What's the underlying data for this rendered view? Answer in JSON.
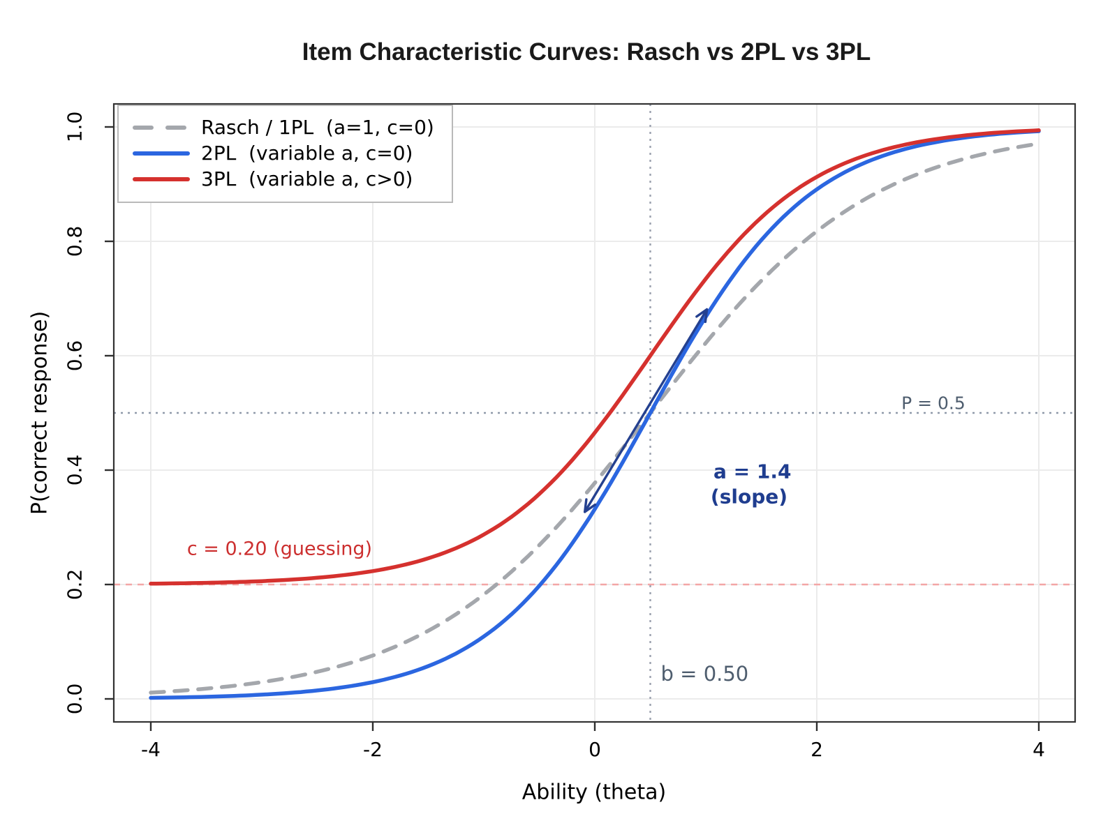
{
  "chart_data": {
    "type": "line",
    "title": "Item Characteristic Curves: Rasch vs 2PL vs 3PL",
    "xlabel": "Ability (theta)",
    "ylabel": "P(correct response)",
    "xlim": [
      -4,
      4
    ],
    "ylim": [
      0,
      1
    ],
    "xticks": [
      -4,
      -2,
      0,
      2,
      4
    ],
    "xtick_labels": [
      "-4",
      "-2",
      "0",
      "2",
      "4"
    ],
    "yticks": [
      0,
      0.2,
      0.4,
      0.6,
      0.8,
      1.0
    ],
    "ytick_labels": [
      "0.0",
      "0.2",
      "0.4",
      "0.6",
      "0.8",
      "1.0"
    ],
    "grid": true,
    "legend_position": "top-left",
    "series": [
      {
        "name": "Rasch / 1PL  (a=1, c=0)",
        "model": "3pl-logistic",
        "params": {
          "a": 1,
          "b": 0.5,
          "c": 0
        },
        "style": "dashed",
        "color": "#a4a7ac",
        "x": [
          -4,
          -3,
          -2,
          -1,
          0,
          0.5,
          1,
          2,
          3,
          4
        ],
        "y": [
          0.011,
          0.029,
          0.076,
          0.182,
          0.378,
          0.5,
          0.622,
          0.818,
          0.924,
          0.971
        ]
      },
      {
        "name": "2PL  (variable a, c=0)",
        "model": "3pl-logistic",
        "params": {
          "a": 1.4,
          "b": 0.5,
          "c": 0
        },
        "style": "solid",
        "color": "#2b66e0",
        "x": [
          -4,
          -3,
          -2,
          -1,
          0,
          0.5,
          1,
          2,
          3,
          4
        ],
        "y": [
          0.002,
          0.007,
          0.029,
          0.109,
          0.332,
          0.5,
          0.668,
          0.891,
          0.971,
          0.993
        ]
      },
      {
        "name": "3PL  (variable a, c>0)",
        "model": "3pl-logistic",
        "params": {
          "a": 1.4,
          "b": 0.5,
          "c": 0.2
        },
        "style": "solid",
        "color": "#d5312e",
        "x": [
          -4,
          -3,
          -2,
          -1,
          0,
          0.5,
          1,
          2,
          3,
          4
        ],
        "y": [
          0.201,
          0.206,
          0.223,
          0.287,
          0.465,
          0.6,
          0.735,
          0.913,
          0.977,
          0.994
        ]
      }
    ],
    "reference_lines": [
      {
        "orientation": "horizontal",
        "value": 0.5,
        "style": "dotted",
        "color": "#8f99a9"
      },
      {
        "orientation": "horizontal",
        "value": 0.2,
        "style": "dashed",
        "color": "#f3a6a6"
      },
      {
        "orientation": "vertical",
        "value": 0.5,
        "style": "dotted",
        "color": "#9aa0ad"
      }
    ],
    "annotations": [
      {
        "text": "P = 0.5",
        "x": 3.05,
        "y": 0.517,
        "color": "#4e5d6e"
      },
      {
        "text": "c = 0.20 (guessing)",
        "x": -2.84,
        "y": 0.262,
        "color": "#cc2f2f"
      },
      {
        "text": "b = 0.50",
        "x": 0.99,
        "y": 0.044,
        "color": "#4e5d6e"
      },
      {
        "text": "a = 1.4",
        "x": 1.42,
        "y": 0.397,
        "color": "#1f3d8f"
      },
      {
        "text": "(slope)",
        "x": 1.39,
        "y": 0.354,
        "color": "#1f3d8f"
      }
    ],
    "slope_arrow": {
      "from": {
        "x": -0.09,
        "y": 0.327
      },
      "to": {
        "x": 1.01,
        "y": 0.681
      },
      "color": "#24408f"
    },
    "colors": {
      "grid": "#ebebeb",
      "box": "#333333",
      "tick": "#2f2f2f"
    }
  }
}
